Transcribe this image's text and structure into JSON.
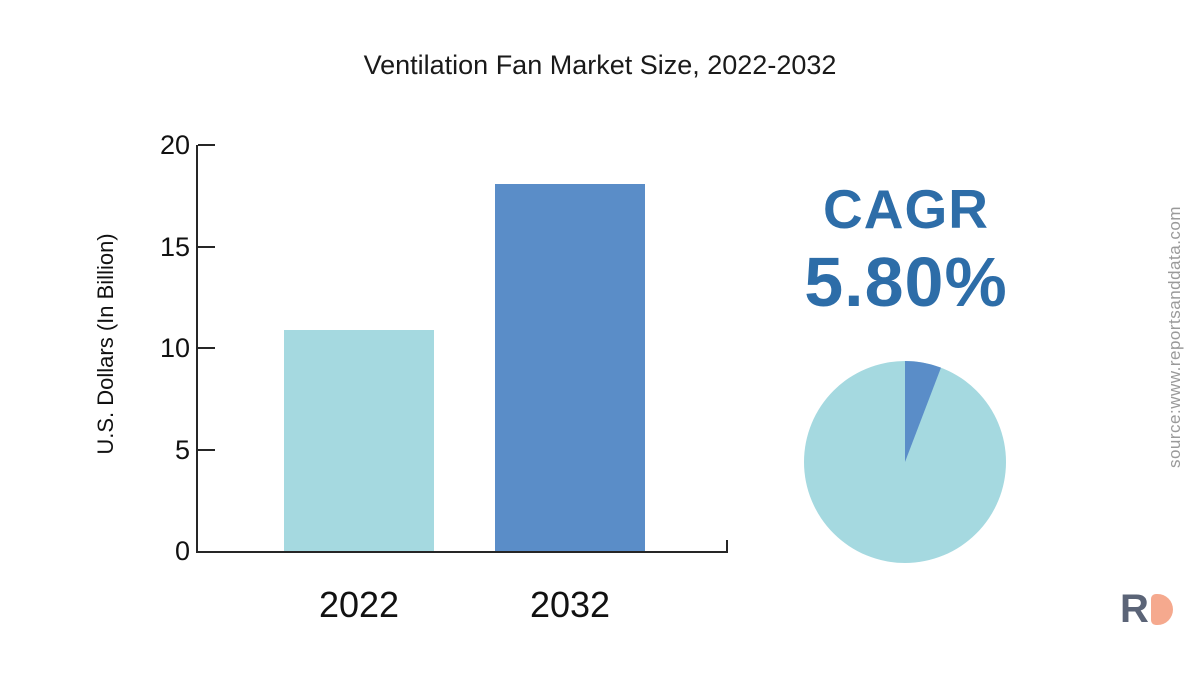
{
  "title": "Ventilation Fan Market Size, 2022-2032",
  "chart_data": [
    {
      "type": "bar",
      "title": "Ventilation Fan Market Size, 2022-2032",
      "categories": [
        "2022",
        "2032"
      ],
      "values": [
        10.9,
        18.1
      ],
      "bar_colors": [
        "#a5d9e0",
        "#5a8dc8"
      ],
      "xlabel": "",
      "ylabel": "U.S. Dollars (In Billion)",
      "ylim": [
        0,
        20
      ],
      "yticks": [
        0,
        5,
        10,
        15,
        20
      ],
      "grid": false,
      "legend": false
    },
    {
      "type": "pie",
      "slices": [
        {
          "name": "cagr-slice",
          "value": 5.8,
          "color": "#5a8dc8"
        },
        {
          "name": "remainder-slice",
          "value": 94.2,
          "color": "#a5d9e0"
        }
      ]
    }
  ],
  "cagr": {
    "label": "CAGR",
    "value": "5.80%",
    "percent": 5.8,
    "color": "#2d6da8"
  },
  "source": {
    "text": "source:www.reportsanddata.com",
    "color": "#9a9a9a"
  },
  "logo": {
    "letter": "R",
    "letter_color": "#5b6477",
    "disc_color": "#f5a98e"
  }
}
